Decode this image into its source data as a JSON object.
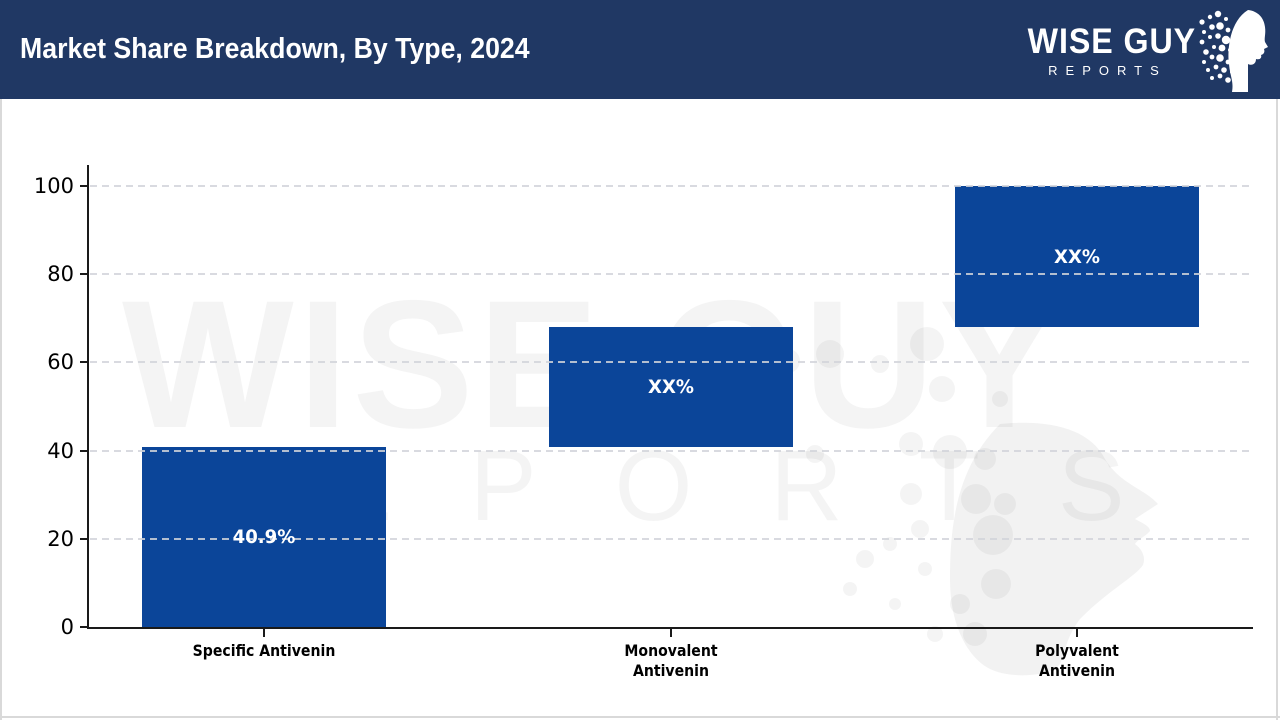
{
  "header": {
    "title": "Market Share Breakdown, By Type, 2024",
    "logo_line1": "WISE GUY",
    "logo_line2": "REPORTS"
  },
  "watermark": {
    "line1": "WISE GUY",
    "line2": "REPORTS"
  },
  "chart_data": {
    "type": "bar",
    "variant": "stepped-breakdown",
    "title": "Market Share Breakdown, By Type, 2024",
    "categories": [
      {
        "lines": [
          "Specific Antivenin"
        ]
      },
      {
        "lines": [
          "Monovalent",
          "Antivenin"
        ]
      },
      {
        "lines": [
          "Polyvalent",
          "Antivenin"
        ]
      }
    ],
    "bars": [
      {
        "category": "Specific Antivenin",
        "start": 0,
        "end": 40.9,
        "label": "40.9%"
      },
      {
        "category": "Monovalent Antivenin",
        "start": 40.9,
        "end": 68,
        "label": "XX%"
      },
      {
        "category": "Polyvalent Antivenin",
        "start": 68,
        "end": 100,
        "label": "XX%"
      }
    ],
    "ylim": [
      0,
      100
    ],
    "yticks": [
      0,
      20,
      40,
      60,
      80,
      100
    ],
    "grid": "horizontal-dashed",
    "legend": "none",
    "colors": {
      "bar": "#0b4599",
      "bar_label": "#ffffff",
      "grid": "#d9d9d9",
      "axis": "#1a1a1a",
      "header_bg": "#203864",
      "header_text": "#ffffff"
    }
  }
}
